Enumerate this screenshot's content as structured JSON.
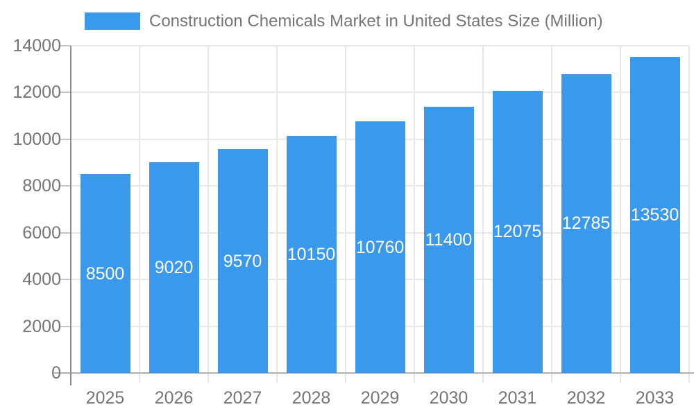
{
  "chart_data": {
    "type": "bar",
    "title": "Construction Chemicals Market in United States Size (Million)",
    "categories": [
      "2025",
      "2026",
      "2027",
      "2028",
      "2029",
      "2030",
      "2031",
      "2032",
      "2033"
    ],
    "values": [
      8500,
      9020,
      9570,
      10150,
      10760,
      11400,
      12075,
      12785,
      13530
    ],
    "yticks": [
      0,
      2000,
      4000,
      6000,
      8000,
      10000,
      12000,
      14000
    ],
    "ylim": [
      0,
      14000
    ],
    "xlabel": "",
    "ylabel": "",
    "grid": "both",
    "legend_position": "top-left",
    "value_labels": "inside-center"
  },
  "colors": {
    "bar_fill": "#3b99ec",
    "value_label": "#ffffff",
    "axis_text": "#757575",
    "grid_line": "#e7e7e7",
    "y_axis_line": "#909090",
    "baseline": "#b0b0b0",
    "y_tick": "#c6c6c6",
    "background": "#ffffff"
  }
}
